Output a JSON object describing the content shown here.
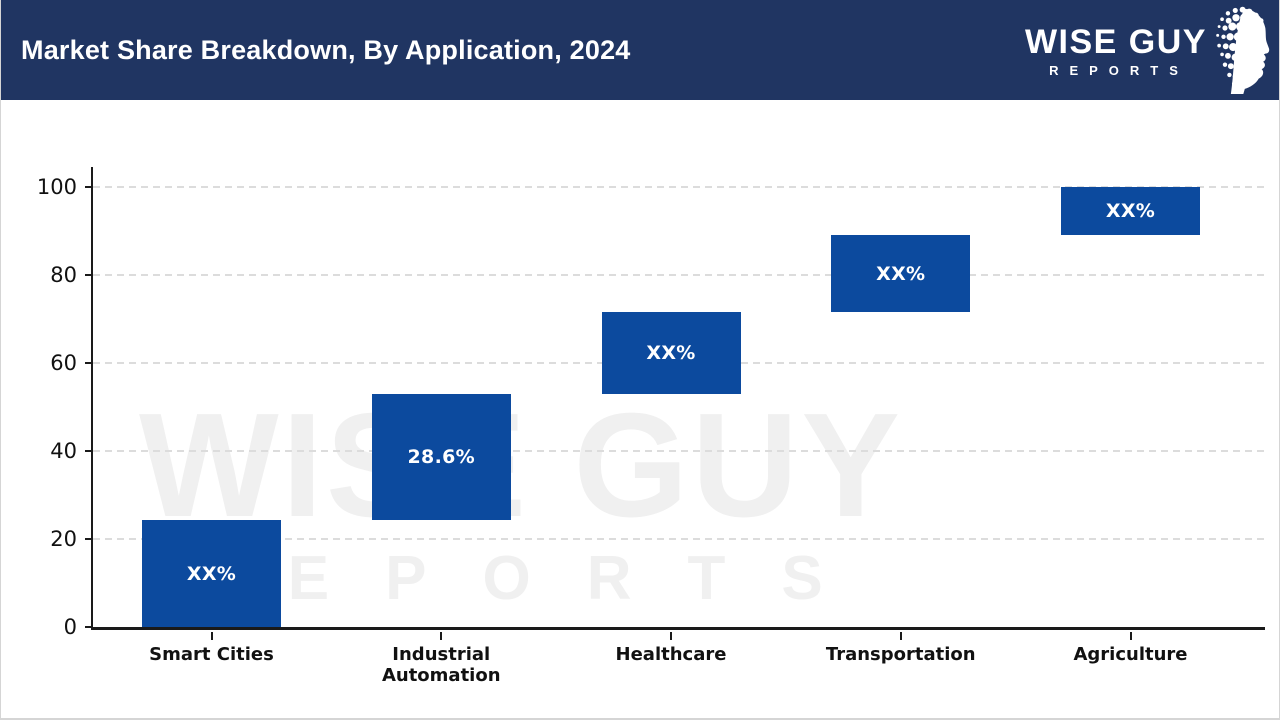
{
  "header": {
    "title": "Market Share Breakdown, By Application, 2024",
    "logo": {
      "line1": "WISE GUY",
      "line2": "REPORTS"
    }
  },
  "watermark": {
    "line1": "WISE GUY",
    "line2": "REPORTS"
  },
  "colors": {
    "header_bg": "#203562",
    "bar": "#0c4a9e",
    "bar_label": "#ffffff",
    "grid": "#dcdcdc",
    "axis": "#1a1a1a",
    "watermark": "#f0f0f0",
    "watermark_head": "#f4f4f4"
  },
  "chart_data": {
    "type": "bar",
    "subtype": "waterfall-floating-bars",
    "title": "Market Share Breakdown, By Application, 2024",
    "xlabel": "",
    "ylabel": "",
    "ylim": [
      0,
      100
    ],
    "yticks": [
      0,
      20,
      40,
      60,
      80,
      100
    ],
    "grid": "horizontal-dashed",
    "legend": "none",
    "categories": [
      "Smart Cities",
      "Industrial\nAutomation",
      "Healthcare",
      "Transportation",
      "Agriculture"
    ],
    "segments": [
      {
        "category": "Smart Cities",
        "start": 0,
        "end": 24.3,
        "value_label": "XX%"
      },
      {
        "category": "Industrial Automation",
        "start": 24.3,
        "end": 52.9,
        "value_label": "28.6%"
      },
      {
        "category": "Healthcare",
        "start": 52.9,
        "end": 71.5,
        "value_label": "XX%"
      },
      {
        "category": "Transportation",
        "start": 71.5,
        "end": 89.0,
        "value_label": "XX%"
      },
      {
        "category": "Agriculture",
        "start": 89.0,
        "end": 100.0,
        "value_label": "XX%"
      }
    ]
  }
}
